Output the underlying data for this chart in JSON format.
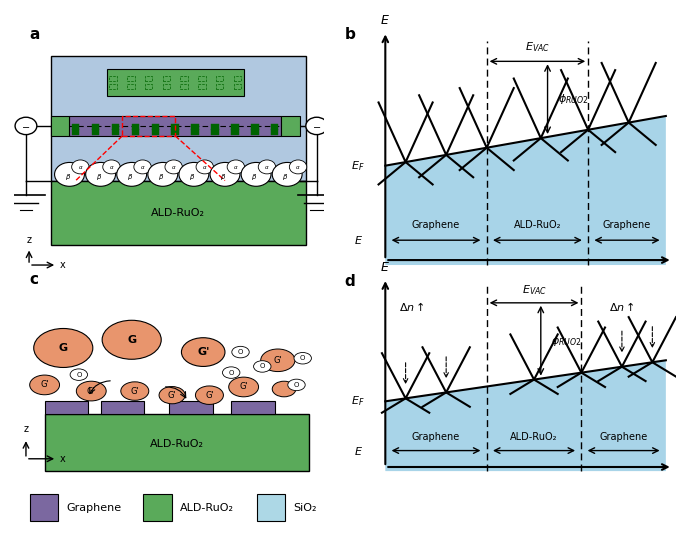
{
  "bg_color": "#ffffff",
  "light_blue": "#a8d4e8",
  "graphene_color": "#7b68a0",
  "ald_ruo2_color": "#5aaa5a",
  "sio2_color": "#add8e6",
  "device_blue": "#b0c8e0",
  "orange_circle": "#e8956d",
  "white_circle": "#ffffff",
  "panel_labels": [
    "a",
    "b",
    "c",
    "d"
  ],
  "legend_items": [
    "Graphene",
    "ALD-RuO₂",
    "SiO₂"
  ],
  "legend_colors": [
    "#7b68a0",
    "#5aaa5a",
    "#add8e6"
  ]
}
